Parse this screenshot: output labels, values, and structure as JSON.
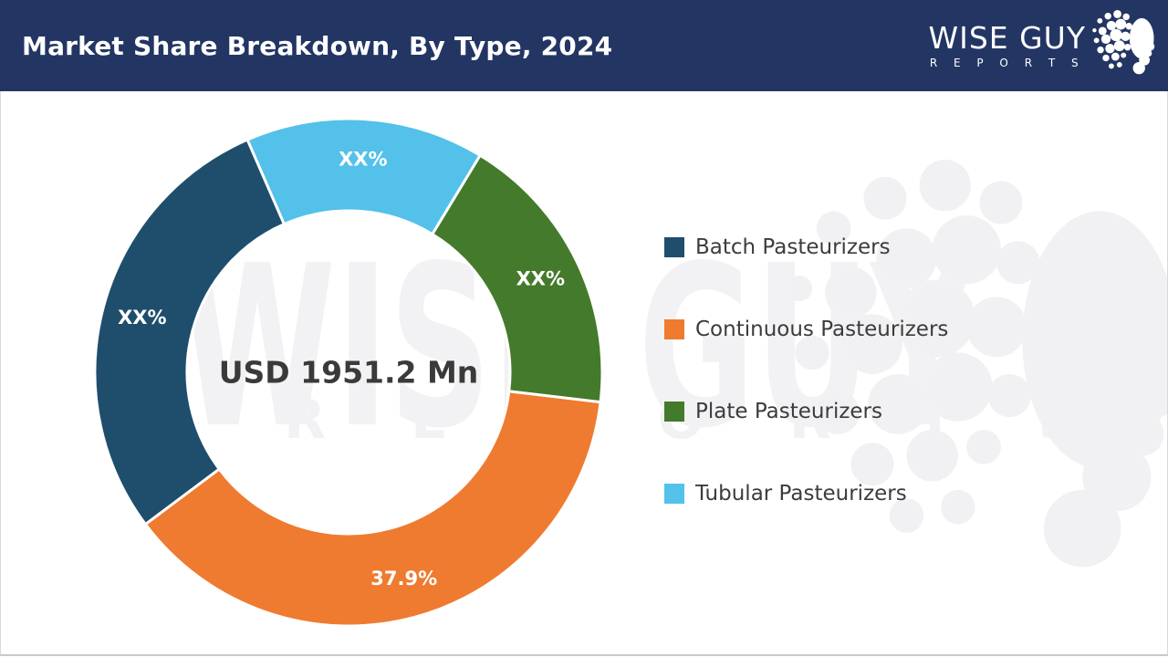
{
  "header": {
    "title": "Market Share Breakdown, By Type, 2024",
    "bg_color": "#233563",
    "logo": {
      "name": "WISE GUY",
      "sub": "R E P O R T S",
      "face_icon": "dotted-face-profile"
    }
  },
  "watermark": {
    "line1": "WISE GUY",
    "line2": "R E P O R T S",
    "color": "#F2F2F4"
  },
  "chart_data": {
    "type": "pie",
    "subtype": "donut",
    "title": "Market Share Breakdown, By Type, 2024",
    "center_label": "USD 1951.2 Mn",
    "start_angle_deg": 113.5,
    "direction": "counterclockwise",
    "legend_position": "right",
    "slice_gap_color": "#ffffff",
    "slices": [
      {
        "label": "Batch Pasteurizers",
        "display_pct": "XX%",
        "est_pct": 28.7,
        "color": "#1F4E6D"
      },
      {
        "label": "Continuous Pasteurizers",
        "display_pct": "37.9%",
        "est_pct": 37.9,
        "color": "#EE7B30"
      },
      {
        "label": "Plate Pasteurizers",
        "display_pct": "XX%",
        "est_pct": 18.2,
        "color": "#447A2B"
      },
      {
        "label": "Tubular Pasteurizers",
        "display_pct": "XX%",
        "est_pct": 15.2,
        "color": "#53C1E9"
      }
    ],
    "colors": {
      "center_text": "#3A3A3A",
      "slice_label_text": "#FFFFFF",
      "legend_text": "#3C3C3C"
    }
  }
}
